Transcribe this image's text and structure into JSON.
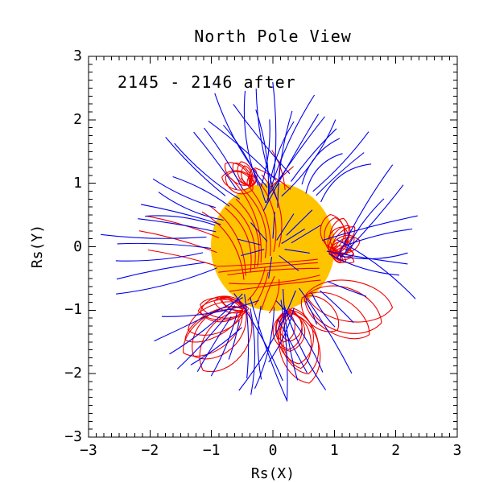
{
  "chart_data": {
    "type": "line",
    "subtype": "solar-coronal-magnetic-field-line-map",
    "title": "North Pole View",
    "annotation": "2145 - 2146 after",
    "xlabel": "Rs(X)",
    "ylabel": "Rs(Y)",
    "xlim": [
      -3,
      3
    ],
    "ylim": [
      -3,
      3
    ],
    "xticks": {
      "values": [
        -3,
        -2,
        -1,
        0,
        1,
        2,
        3
      ],
      "labels": [
        "−3",
        "−2",
        "−1",
        "0",
        "1",
        "2",
        "3"
      ]
    },
    "yticks": {
      "values": [
        -3,
        -2,
        -1,
        0,
        1,
        2,
        3
      ],
      "labels": [
        "−3",
        "−2",
        "−1",
        "0",
        "1",
        "2",
        "3"
      ]
    },
    "minor_divisions_per_major": 8,
    "grid": false,
    "legend": null,
    "colors": {
      "open_field_lines": "#0000EE",
      "closed_field_lines": "#EE0000",
      "sun_disk": "#FFC400",
      "axis": "#000000",
      "background": "#FFFFFF"
    },
    "sun": {
      "cx": 0,
      "cy": 0,
      "radius": 1.01
    },
    "seed": 7,
    "closed_field_lines": [
      {
        "name": "upper-left-limb-loop-knot",
        "kind": "petals",
        "n": 9,
        "foot": [
          -0.36,
          0.95
        ],
        "footJitter": 0.12,
        "dir": [
          58,
          168
        ],
        "len": [
          0.18,
          0.6
        ],
        "width": [
          0.06,
          0.22
        ]
      },
      {
        "name": "center-to-upper-left-arcade",
        "kind": "rays",
        "n": 10,
        "startLine": [
          [
            0.1,
            -0.02
          ],
          [
            -0.5,
            -0.5
          ]
        ],
        "angles": [
          102,
          152
        ],
        "endR": [
          0.95,
          1.3
        ],
        "bow": 0.32,
        "bowSign": -1
      },
      {
        "name": "right-limb-loop-rosette",
        "kind": "petals",
        "n": 16,
        "foot": [
          0.97,
          -0.08
        ],
        "footJitter": 0.1,
        "dir": [
          -65,
          98
        ],
        "len": [
          0.18,
          0.62
        ],
        "width": [
          0.05,
          0.24
        ]
      },
      {
        "name": "right-limb-large-loops",
        "kind": "petals",
        "n": 4,
        "foot": [
          0.52,
          -0.78
        ],
        "footJitter": 0.1,
        "dir": [
          -40,
          -8
        ],
        "len": [
          0.9,
          1.5
        ],
        "width": [
          0.28,
          0.55
        ]
      },
      {
        "name": "bottom-left-loop-arcade",
        "kind": "petals",
        "n": 11,
        "foot": [
          -0.45,
          -0.98
        ],
        "footJitter": 0.12,
        "dir": [
          148,
          232
        ],
        "len": [
          0.35,
          1.35
        ],
        "width": [
          0.1,
          0.42
        ]
      },
      {
        "name": "bottom-loop-arcade",
        "kind": "petals",
        "n": 8,
        "foot": [
          0.28,
          -1.0
        ],
        "footJitter": 0.12,
        "dir": [
          262,
          287
        ],
        "len": [
          0.45,
          1.12
        ],
        "width": [
          0.18,
          0.5
        ]
      },
      {
        "name": "west-streamer-lines",
        "kind": "rays",
        "n": 3,
        "startLine": [
          [
            -0.88,
            0.12
          ],
          [
            -0.92,
            -0.3
          ]
        ],
        "angles": [
          168,
          184
        ],
        "endR": [
          1.9,
          2.3
        ],
        "bow": 0.12
      },
      {
        "name": "lower-face-loop-tops",
        "kind": "rays",
        "n": 5,
        "startLine": [
          [
            0.72,
            -0.18
          ],
          [
            0.78,
            -0.5
          ]
        ],
        "angles": [
          196,
          224
        ],
        "endR": [
          0.8,
          1.05
        ],
        "bow": 0.15
      },
      {
        "name": "top-limb-loop-tops",
        "kind": "rays",
        "n": 4,
        "startLine": [
          [
            -0.05,
            0.95
          ],
          [
            0.3,
            0.9
          ]
        ],
        "angles": [
          74,
          102
        ],
        "endR": [
          1.25,
          1.55
        ],
        "bow": 0.1
      },
      {
        "name": "lower-face-strands",
        "kind": "rays",
        "n": 4,
        "startLine": [
          [
            -0.12,
            -0.3
          ],
          [
            0.1,
            -0.52
          ]
        ],
        "angles": [
          243,
          268
        ],
        "endR": [
          0.88,
          1.05
        ],
        "bow": 0.1
      }
    ],
    "open_field_lines": [
      {
        "name": "north-fan",
        "kind": "rays",
        "n": 16,
        "foot": [
          0.0,
          0.86
        ],
        "footJitter": 0.3,
        "angles": [
          62,
          116
        ],
        "endR": [
          2.0,
          2.6
        ],
        "bow": 0.2
      },
      {
        "name": "northeast-streams",
        "kind": "rays",
        "n": 5,
        "startAngles": [
          44,
          62
        ],
        "startR": [
          0.95,
          1.1
        ],
        "angles": [
          38,
          60
        ],
        "endR": [
          1.8,
          2.4
        ],
        "bow": 0.3
      },
      {
        "name": "east-fan",
        "kind": "rays",
        "n": 9,
        "foot": [
          1.02,
          -0.05
        ],
        "footJitter": 0.22,
        "angles": [
          -22,
          34
        ],
        "endR": [
          1.9,
          2.6
        ],
        "bow": 0.18
      },
      {
        "name": "northwest-streams",
        "kind": "rays",
        "n": 9,
        "startAngles": [
          116,
          162
        ],
        "startR": [
          0.9,
          1.12
        ],
        "angles": [
          120,
          168
        ],
        "endR": [
          1.8,
          2.5
        ],
        "bow": 0.15
      },
      {
        "name": "west-streams",
        "kind": "rays",
        "n": 6,
        "startAngles": [
          166,
          200
        ],
        "startR": [
          0.95,
          1.15
        ],
        "angles": [
          168,
          198
        ],
        "endR": [
          2.2,
          2.85
        ],
        "bow": 0.12
      },
      {
        "name": "southwest-fan",
        "kind": "rays",
        "n": 13,
        "foot": [
          -0.44,
          -1.0
        ],
        "footJitter": 0.28,
        "angles": [
          213,
          278
        ],
        "endR": [
          1.9,
          2.5
        ],
        "bow": 0.15
      },
      {
        "name": "south-fan",
        "kind": "rays",
        "n": 9,
        "foot": [
          0.2,
          -0.95
        ],
        "footJitter": 0.3,
        "angles": [
          256,
          300
        ],
        "endR": [
          1.8,
          2.5
        ],
        "bow": 0.15
      },
      {
        "name": "southeast-streams",
        "kind": "rays",
        "n": 4,
        "startAngles": [
          300,
          330
        ],
        "startR": [
          0.95,
          1.1
        ],
        "angles": [
          298,
          332
        ],
        "endR": [
          1.4,
          1.9
        ],
        "bow": 0.12
      },
      {
        "name": "polar-starburst",
        "kind": "segments",
        "points": [
          [
            [
              0.06,
              0.1
            ],
            [
              0.34,
              0.52
            ]
          ],
          [
            [
              0.0,
              0.13
            ],
            [
              0.03,
              0.55
            ]
          ],
          [
            [
              -0.09,
              0.08
            ],
            [
              -0.36,
              0.38
            ]
          ],
          [
            [
              0.14,
              0.05
            ],
            [
              0.52,
              0.28
            ]
          ],
          [
            [
              0.19,
              -0.04
            ],
            [
              0.6,
              -0.1
            ]
          ],
          [
            [
              0.1,
              -0.14
            ],
            [
              0.42,
              -0.38
            ]
          ],
          [
            [
              -0.02,
              -0.16
            ],
            [
              -0.07,
              -0.5
            ]
          ],
          [
            [
              -0.14,
              -0.04
            ],
            [
              -0.52,
              -0.14
            ]
          ],
          [
            [
              0.22,
              0.18
            ],
            [
              0.64,
              0.58
            ]
          ],
          [
            [
              0.3,
              0.06
            ],
            [
              0.78,
              0.34
            ]
          ],
          [
            [
              -0.2,
              0.03
            ],
            [
              -0.58,
              0.12
            ]
          ]
        ]
      }
    ]
  }
}
